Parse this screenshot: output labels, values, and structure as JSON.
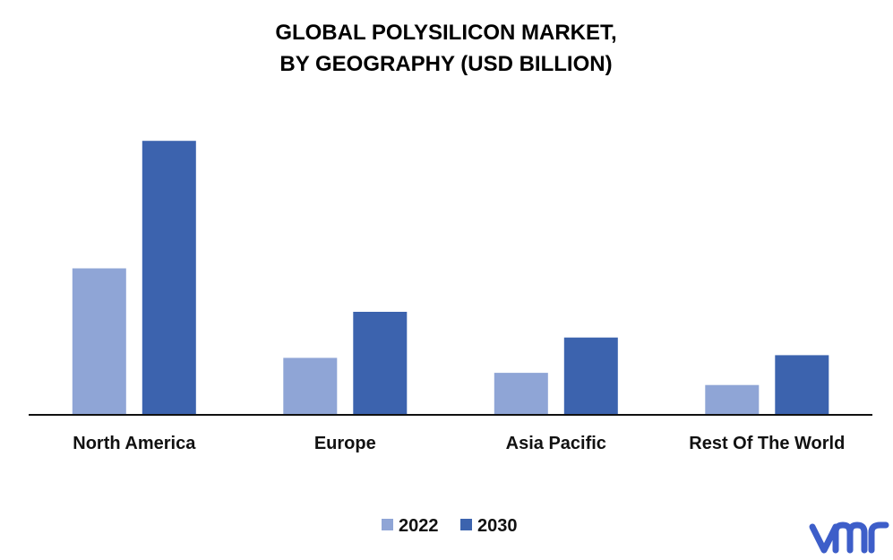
{
  "chart_data": {
    "type": "bar",
    "title_lines": [
      "GLOBAL POLYSILICON MARKET,",
      "BY GEOGRAPHY (USD BILLION)"
    ],
    "categories": [
      "North America",
      "Europe",
      "Asia Pacific",
      "Rest Of The World"
    ],
    "series": [
      {
        "name": "2022",
        "values": [
          5.4,
          2.1,
          1.55,
          1.1
        ],
        "color": "#8FA5D6"
      },
      {
        "name": "2030",
        "values": [
          10.1,
          3.8,
          2.85,
          2.2
        ],
        "color": "#3C63AE"
      }
    ],
    "ylim": [
      0,
      11
    ],
    "grid": false,
    "legend_position": "bottom-center"
  },
  "logo": {
    "text": "vmr",
    "color": "#3D5EC9"
  }
}
